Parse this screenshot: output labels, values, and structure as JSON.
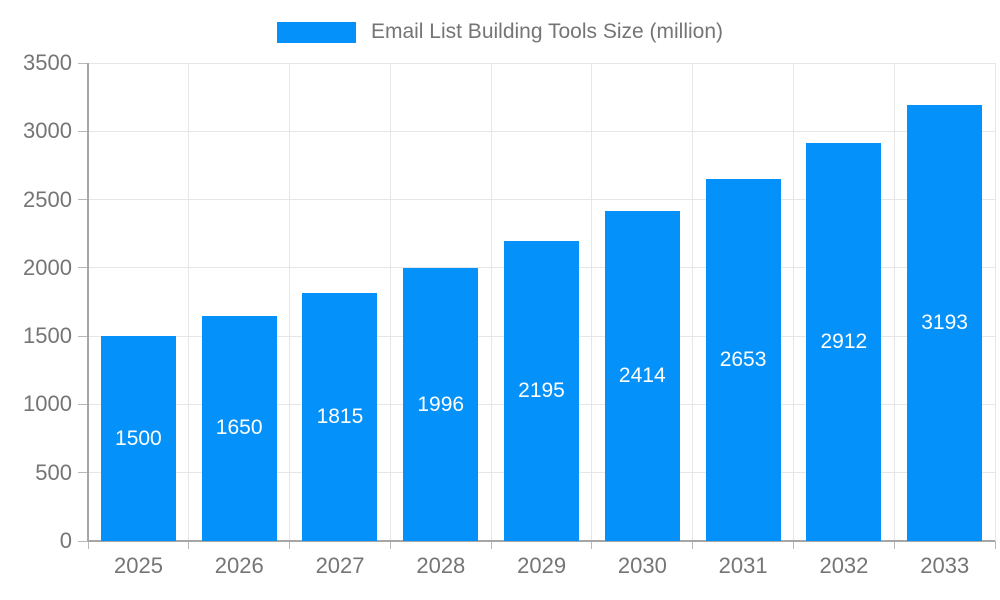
{
  "chart_data": {
    "type": "bar",
    "title": "Email List Building Tools Size (million)",
    "legend": {
      "label": "Email List Building Tools Size (million)",
      "position": "top"
    },
    "categories": [
      "2025",
      "2026",
      "2027",
      "2028",
      "2029",
      "2030",
      "2031",
      "2032",
      "2033"
    ],
    "values": [
      1500,
      1650,
      1815,
      1996,
      2195,
      2414,
      2653,
      2912,
      3193
    ],
    "xlabel": "",
    "ylabel": "",
    "ylim": [
      0,
      3500
    ],
    "y_ticks": [
      0,
      500,
      1000,
      1500,
      2000,
      2500,
      3000,
      3500
    ],
    "grid": true,
    "bar_labels_visible": true,
    "colors": {
      "bar": "#0591fa",
      "bar_label": "#ffffff",
      "axis_line": "#a6a6a6",
      "gridline": "#e6e6e6",
      "tick_text": "#757575",
      "legend_text": "#757575",
      "background": "#ffffff"
    }
  }
}
